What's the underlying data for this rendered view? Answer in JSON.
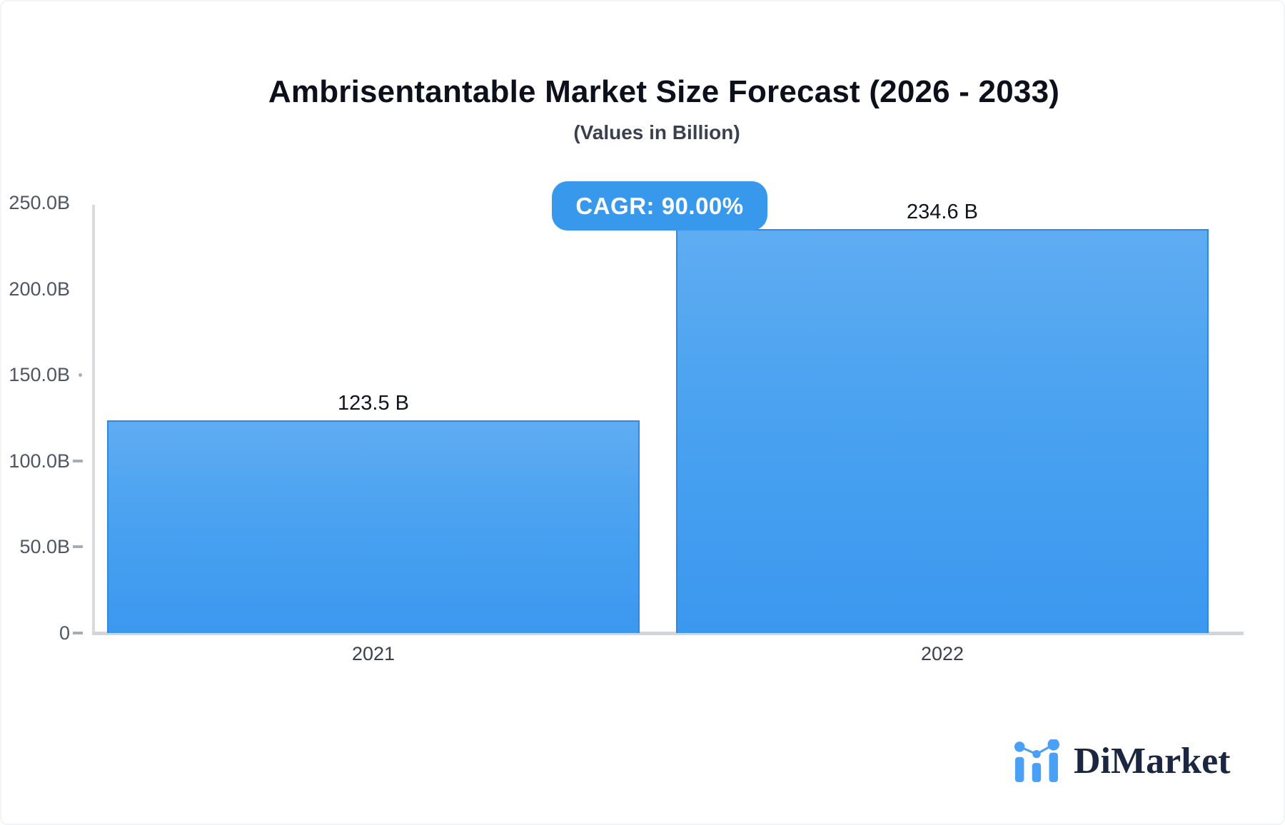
{
  "header": {
    "title": "Ambrisentantable Market Size Forecast (2026 - 2033)",
    "subtitle": "(Values in Billion)"
  },
  "badge": {
    "label": "CAGR: 90.00%"
  },
  "chart_data": {
    "type": "bar",
    "title": "Ambrisentantable Market Size Forecast (2026 - 2033)",
    "subtitle": "(Values in Billion)",
    "cagr_label": "CAGR: 90.00%",
    "cagr_percent": 90.0,
    "unit": "Billion",
    "categories": [
      "2021",
      "2022"
    ],
    "values": [
      123.5,
      234.6
    ],
    "bar_labels": [
      "123.5 B",
      "234.6 B"
    ],
    "ylim": [
      0,
      250
    ],
    "yticks": [
      {
        "label": "250.0B",
        "value": 250,
        "tick": "none"
      },
      {
        "label": "200.0B",
        "value": 200,
        "tick": "none"
      },
      {
        "label": "150.0B",
        "value": 150,
        "tick": "dot"
      },
      {
        "label": "100.0B",
        "value": 100,
        "tick": "dash"
      },
      {
        "label": "50.0B",
        "value": 50,
        "tick": "dash"
      },
      {
        "label": "0",
        "value": 0,
        "tick": "dash"
      }
    ],
    "grid": false,
    "legend": false,
    "colors": {
      "bar_top": "#5facf2",
      "bar_bottom": "#3b98ef",
      "bar_border": "#2f88e1",
      "badge_background": "#3898ec",
      "axis_line": "#d2d6db"
    }
  },
  "branding": {
    "logo_text": "DiMarket",
    "logo_icon": "bar-chart-logo-icon",
    "logo_text_color": "#1b2640",
    "logo_icon_color": "#4aa0f4"
  }
}
